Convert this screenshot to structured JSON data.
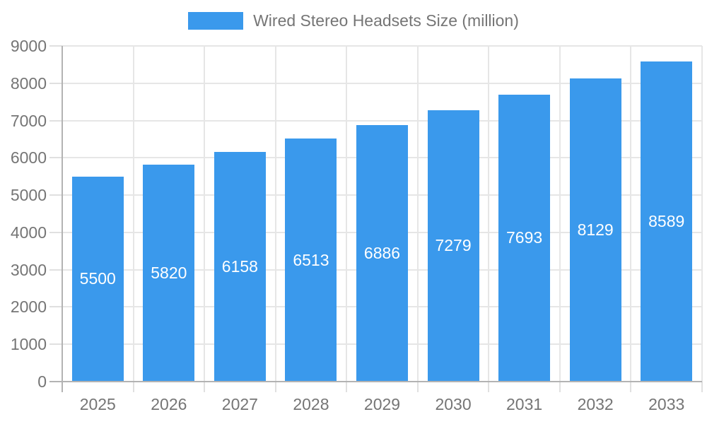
{
  "chart_data": {
    "type": "bar",
    "title": "Wired Stereo Headsets Size (million)",
    "legend": {
      "position": "top-center",
      "entries": [
        "Wired Stereo Headsets Size (million)"
      ]
    },
    "categories": [
      "2025",
      "2026",
      "2027",
      "2028",
      "2029",
      "2030",
      "2031",
      "2032",
      "2033"
    ],
    "values": [
      5500,
      5820,
      6158,
      6513,
      6886,
      7279,
      7693,
      8129,
      8589
    ],
    "value_labels": [
      "5500",
      "5820",
      "6158",
      "6513",
      "6886",
      "7279",
      "7693",
      "8129",
      "8589"
    ],
    "xlabel": "",
    "ylabel": "",
    "ylim": [
      0,
      9000
    ],
    "y_tick_step": 1000,
    "y_ticks": [
      0,
      1000,
      2000,
      3000,
      4000,
      5000,
      6000,
      7000,
      8000,
      9000
    ],
    "grid": "both",
    "value_label_position": "center-inside",
    "colors": {
      "bar": "#3A99EC",
      "value_label": "#FFFFFF",
      "grid_line": "#E6E6E6",
      "tick_mark": "#E0E0E0",
      "axis_line": "#B3B3B3",
      "axis_text": "#757575",
      "background": "#FFFFFF"
    }
  }
}
